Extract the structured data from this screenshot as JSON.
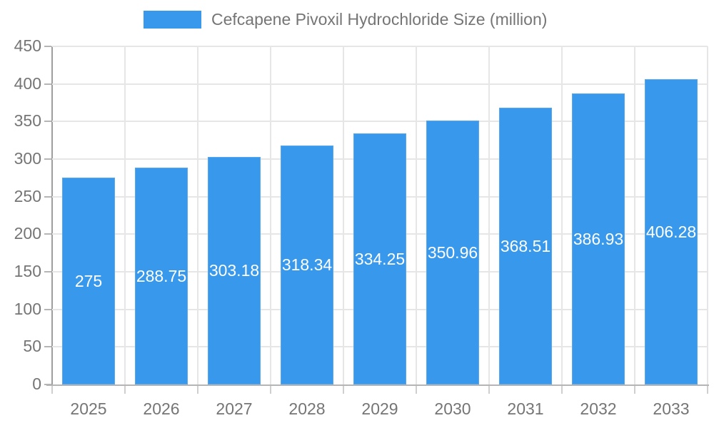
{
  "legend": {
    "label": "Cefcapene Pivoxil Hydrochloride Size (million)",
    "swatch_color": "#3898ec"
  },
  "chart_data": {
    "type": "bar",
    "title": "Cefcapene Pivoxil Hydrochloride Size (million)",
    "categories": [
      "2025",
      "2026",
      "2027",
      "2028",
      "2029",
      "2030",
      "2031",
      "2032",
      "2033"
    ],
    "values": [
      275,
      288.75,
      303.18,
      318.34,
      334.25,
      350.96,
      368.51,
      386.93,
      406.28
    ],
    "value_labels": [
      "275",
      "288.75",
      "303.18",
      "318.34",
      "334.25",
      "350.96",
      "368.51",
      "386.93",
      "406.28"
    ],
    "xlabel": "",
    "ylabel": "",
    "ylim": [
      0,
      450
    ],
    "ytick_step": 50,
    "ytick_labels": [
      "0",
      "50",
      "100",
      "150",
      "200",
      "250",
      "300",
      "350",
      "400",
      "450"
    ],
    "grid": true,
    "legend_position": "top",
    "bar_color": "#3898ec",
    "value_label_color": "#ffffff",
    "axis_text_color": "#757575",
    "gridline_color": "#e6e6e6"
  }
}
